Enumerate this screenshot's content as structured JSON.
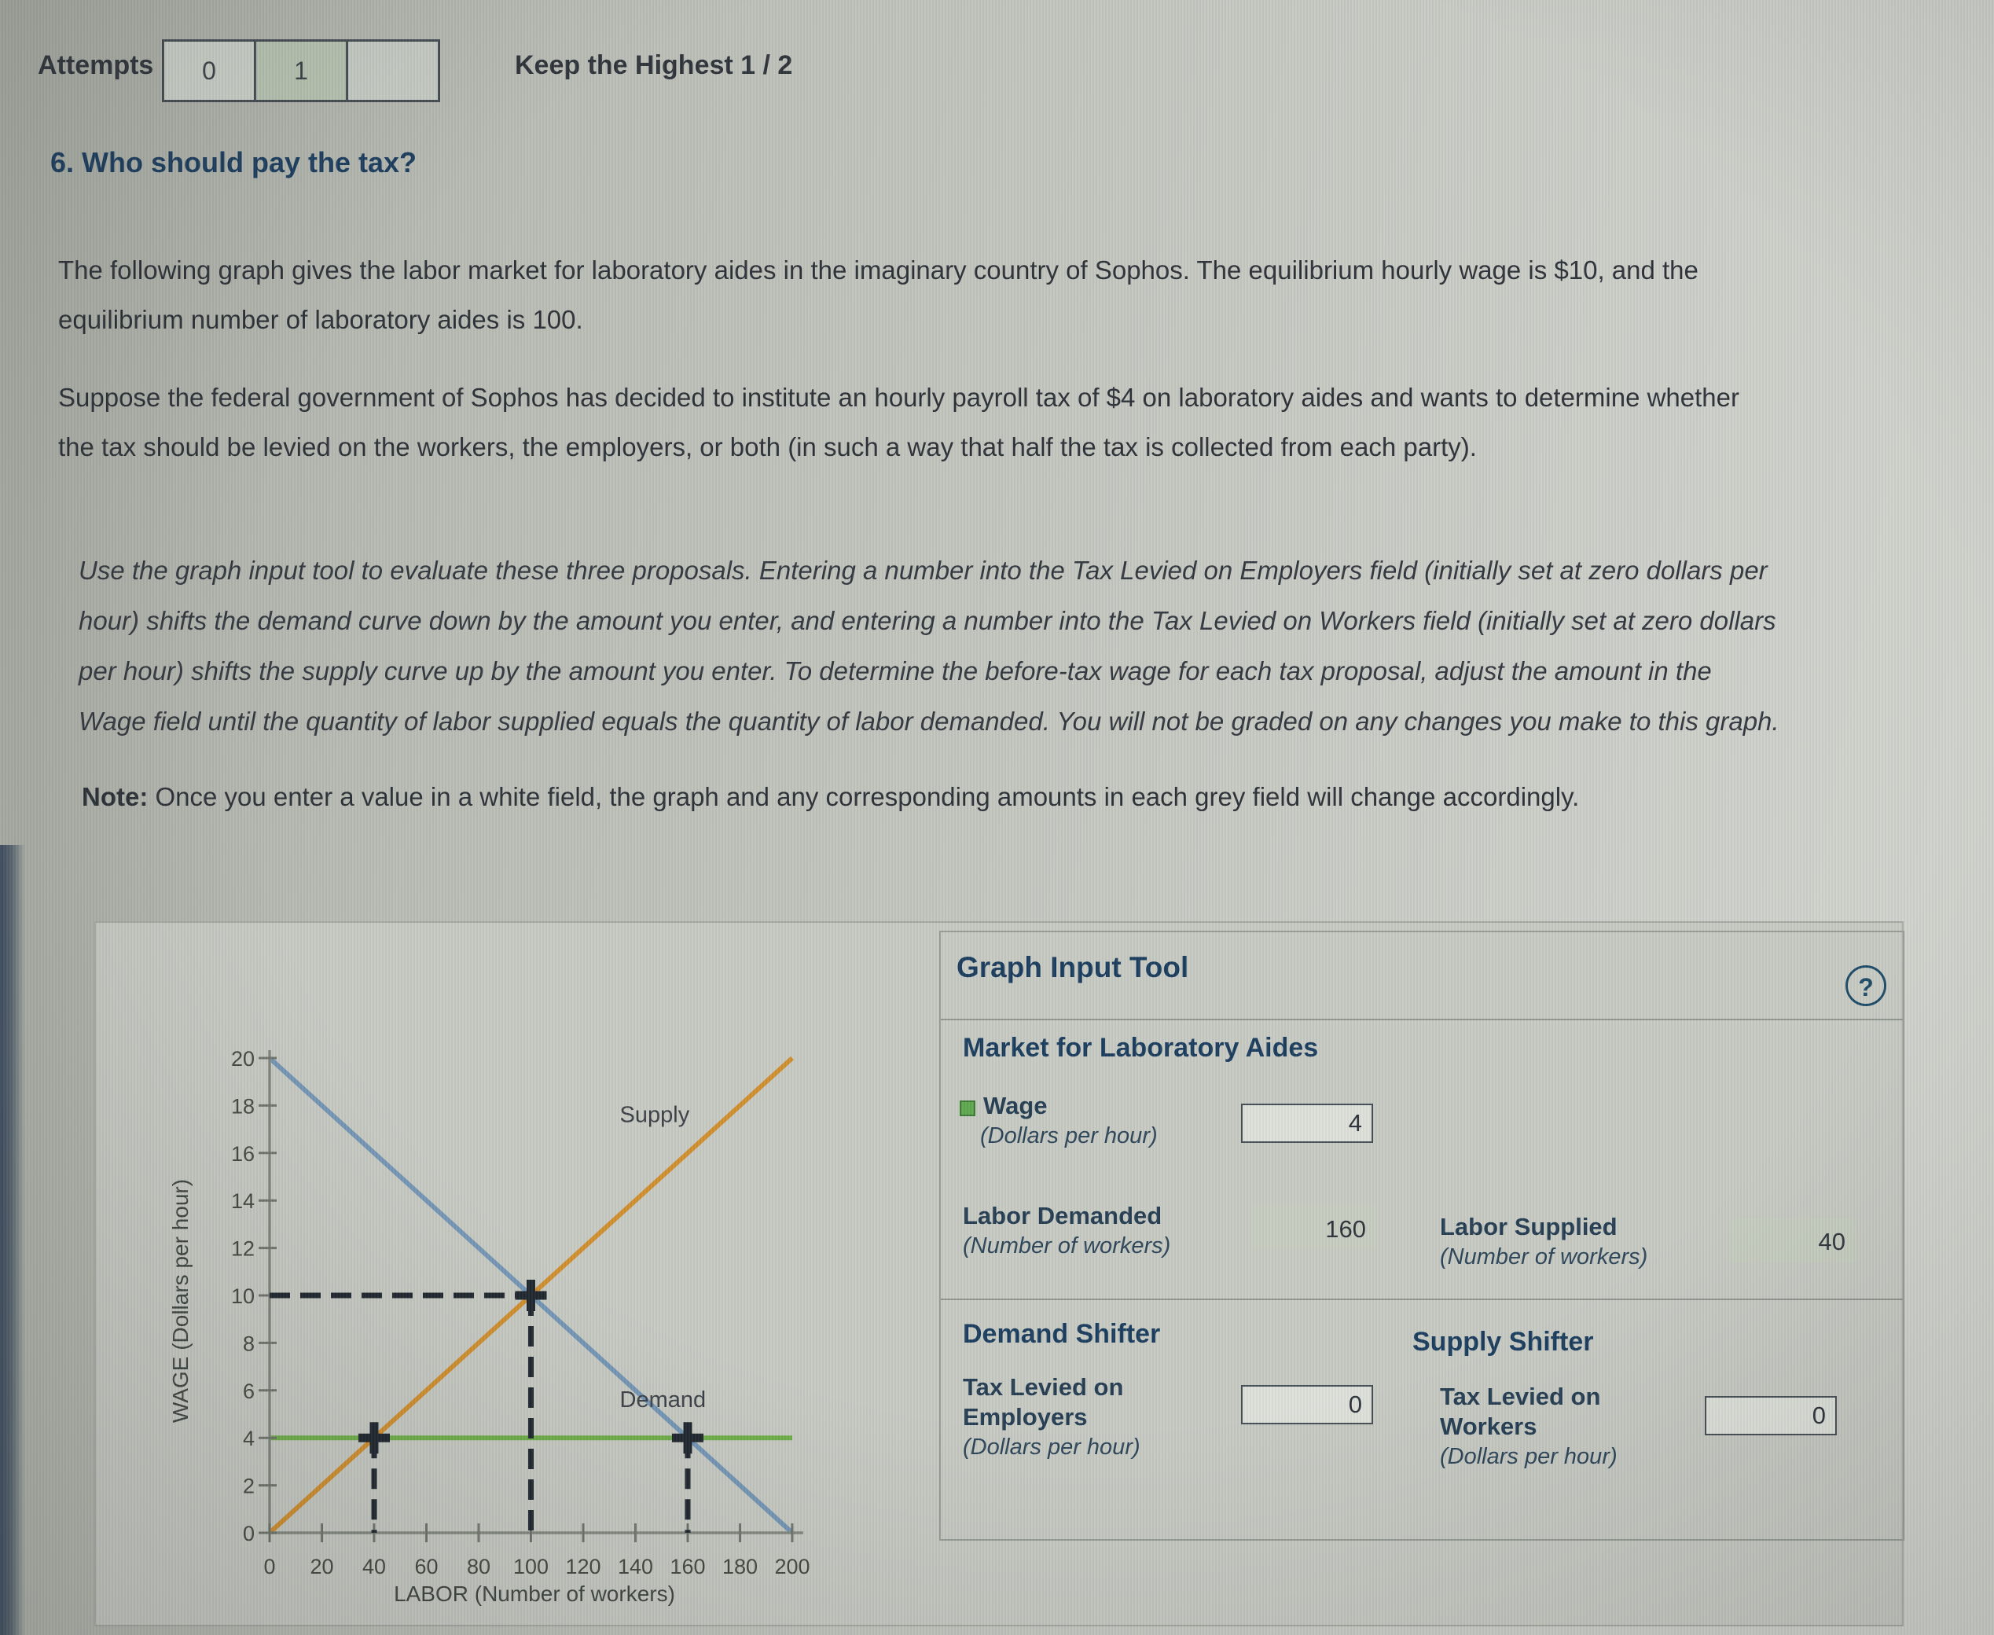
{
  "header": {
    "attempts_label": "Attempts",
    "attempts_cells": [
      "0",
      "1",
      ""
    ],
    "keep_highest": "Keep the Highest 1 / 2"
  },
  "question": {
    "title": "6. Who should pay the tax?",
    "para1_lines": [
      "The following graph gives the labor market for laboratory aides in the imaginary country of Sophos. The equilibrium hourly wage is $10, and the",
      "equilibrium number of laboratory aides is 100."
    ],
    "para2_lines": [
      "Suppose the federal government of Sophos has decided to institute an hourly payroll tax of $4 on laboratory aides and wants to determine whether",
      "the tax should be levied on the workers, the employers, or both (in such a way that half the tax is collected from each party)."
    ],
    "italic_lines": [
      "Use the graph input tool to evaluate these three proposals. Entering a number into the Tax Levied on Employers field (initially set at zero dollars per",
      "hour) shifts the demand curve down by the amount you enter, and entering a number into the Tax Levied on Workers field (initially set at zero dollars",
      "per hour) shifts the supply curve up by the amount you enter. To determine the before-tax wage for each tax proposal, adjust the amount in the",
      "Wage field until the quantity of labor supplied equals the quantity of labor demanded. You will not be graded on any changes you make to this graph."
    ],
    "note_bold": "Note:",
    "note_rest": " Once you enter a value in a white field, the graph and any corresponding amounts in each grey field will change accordingly."
  },
  "tool": {
    "title": "Graph Input Tool",
    "help_icon": "?",
    "market_title": "Market for Laboratory Aides",
    "wage": {
      "label": "Wage",
      "sublabel": "(Dollars per hour)",
      "value": "4"
    },
    "labor_demanded": {
      "label": "Labor Demanded",
      "sublabel": "(Number of workers)",
      "value": "160"
    },
    "labor_supplied": {
      "label": "Labor Supplied",
      "sublabel": "(Number of workers)",
      "value": "40"
    },
    "demand_shifter_title": "Demand Shifter",
    "supply_shifter_title": "Supply Shifter",
    "tax_employers": {
      "label_line1": "Tax Levied on",
      "label_line2": "Employers",
      "sublabel": "(Dollars per hour)",
      "value": "0"
    },
    "tax_workers": {
      "label_line1": "Tax Levied on",
      "label_line2": "Workers",
      "sublabel": "(Dollars per hour)",
      "value": "0"
    }
  },
  "chart_data": {
    "type": "line",
    "title": "",
    "xlabel": "LABOR (Number of workers)",
    "ylabel": "WAGE (Dollars per hour)",
    "xlim": [
      0,
      200
    ],
    "ylim": [
      0,
      20
    ],
    "x_ticks": [
      0,
      20,
      40,
      60,
      80,
      100,
      120,
      140,
      160,
      180,
      200
    ],
    "y_ticks": [
      0,
      2,
      4,
      6,
      8,
      10,
      12,
      14,
      16,
      18,
      20
    ],
    "grid": false,
    "series": [
      {
        "name": "Demand",
        "points": [
          [
            0,
            20
          ],
          [
            200,
            0
          ]
        ],
        "color": "#7496b5",
        "label_pos": [
          134,
          5.3
        ]
      },
      {
        "name": "Supply",
        "points": [
          [
            0,
            0
          ],
          [
            200,
            20
          ]
        ],
        "color": "#d18f2e",
        "label_pos": [
          134,
          17.3
        ]
      },
      {
        "name": "Wage line",
        "points": [
          [
            0,
            4
          ],
          [
            200,
            4
          ]
        ],
        "color": "#6fae49",
        "label_pos": null
      }
    ],
    "equilibrium": {
      "wage": 10,
      "labor": 100
    },
    "current_wage": 4,
    "labor_demanded_at_wage": 160,
    "labor_supplied_at_wage": 40,
    "dashed_guides": {
      "horizontal": [
        {
          "wage": 10,
          "from_labor": 0,
          "to_labor": 100
        }
      ],
      "vertical": [
        {
          "labor": 40,
          "from_wage": 0,
          "to_wage": 4
        },
        {
          "labor": 100,
          "from_wage": 0,
          "to_wage": 10
        },
        {
          "labor": 160,
          "from_wage": 0,
          "to_wage": 4
        }
      ]
    },
    "markers": [
      [
        40,
        4
      ],
      [
        100,
        10
      ],
      [
        160,
        4
      ]
    ],
    "marker_style": "plus",
    "dash_color": "#20262e",
    "axis_color": "#83887f"
  }
}
